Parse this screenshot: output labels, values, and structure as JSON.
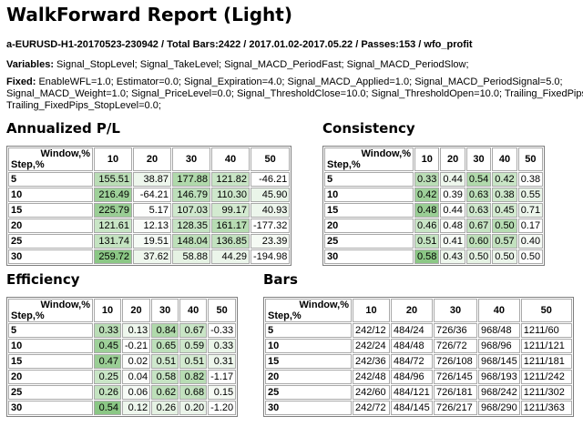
{
  "page": {
    "title": "WalkForward Report (Light)",
    "summary": "a-EURUSD-H1-20170523-230942 / Total Bars:2422 / 2017.01.02-2017.05.22 / Passes:153 / wfo_profit",
    "variables_label": "Variables:",
    "variables_text": "Signal_StopLevel; Signal_TakeLevel; Signal_MACD_PeriodFast; Signal_MACD_PeriodSlow;",
    "fixed_label": "Fixed:",
    "fixed_lines": [
      "EnableWFL=1.0; Estimator=0.0; Signal_Expiration=4.0; Signal_MACD_Applied=1.0; Signal_MACD_PeriodSignal=5.0;",
      "Signal_MACD_Weight=1.0; Signal_PriceLevel=0.0; Signal_ThresholdClose=10.0; Signal_ThresholdOpen=10.0; Trailing_FixedPips",
      "Trailing_FixedPips_StopLevel=0.0;"
    ]
  },
  "grid_header": {
    "corner_top": "Window,%",
    "corner_bottom": "Step,%",
    "columns": [
      "10",
      "20",
      "30",
      "40",
      "50"
    ],
    "rows": [
      "5",
      "10",
      "15",
      "20",
      "25",
      "30"
    ]
  },
  "tables": [
    {
      "id": "annualized_pl",
      "title": "Annualized P/L",
      "align": "right",
      "shaded": true,
      "values": [
        [
          "155.51",
          "38.87",
          "177.88",
          "121.82",
          "-46.21"
        ],
        [
          "216.49",
          "-64.21",
          "146.79",
          "110.30",
          "45.90"
        ],
        [
          "225.79",
          "5.17",
          "107.03",
          "99.17",
          "40.93"
        ],
        [
          "121.61",
          "12.13",
          "128.35",
          "161.17",
          "-177.32"
        ],
        [
          "131.74",
          "19.51",
          "148.04",
          "136.85",
          "23.39"
        ],
        [
          "259.72",
          "37.62",
          "58.88",
          "44.29",
          "-194.98"
        ]
      ]
    },
    {
      "id": "consistency",
      "title": "Consistency",
      "align": "right",
      "shaded": true,
      "values": [
        [
          "0.33",
          "0.44",
          "0.54",
          "0.42",
          "0.38"
        ],
        [
          "0.42",
          "0.39",
          "0.63",
          "0.38",
          "0.55"
        ],
        [
          "0.48",
          "0.44",
          "0.63",
          "0.45",
          "0.71"
        ],
        [
          "0.46",
          "0.48",
          "0.67",
          "0.50",
          "0.17"
        ],
        [
          "0.51",
          "0.41",
          "0.60",
          "0.57",
          "0.40"
        ],
        [
          "0.58",
          "0.43",
          "0.50",
          "0.50",
          "0.50"
        ]
      ]
    },
    {
      "id": "efficiency",
      "title": "Efficiency",
      "align": "right",
      "shaded": true,
      "values": [
        [
          "0.33",
          "0.13",
          "0.84",
          "0.67",
          "-0.33"
        ],
        [
          "0.45",
          "-0.21",
          "0.65",
          "0.59",
          "0.33"
        ],
        [
          "0.47",
          "0.02",
          "0.51",
          "0.51",
          "0.31"
        ],
        [
          "0.25",
          "0.04",
          "0.58",
          "0.82",
          "-1.17"
        ],
        [
          "0.26",
          "0.06",
          "0.62",
          "0.68",
          "0.15"
        ],
        [
          "0.54",
          "0.12",
          "0.26",
          "0.20",
          "-1.20"
        ]
      ]
    },
    {
      "id": "bars",
      "title": "Bars",
      "align": "left",
      "shaded": false,
      "values": [
        [
          "242/12",
          "484/24",
          "726/36",
          "968/48",
          "1211/60"
        ],
        [
          "242/24",
          "484/48",
          "726/72",
          "968/96",
          "1211/121"
        ],
        [
          "242/36",
          "484/72",
          "726/108",
          "968/145",
          "1211/181"
        ],
        [
          "242/48",
          "484/96",
          "726/145",
          "968/193",
          "1211/242"
        ],
        [
          "242/60",
          "484/121",
          "726/181",
          "968/242",
          "1211/302"
        ],
        [
          "242/72",
          "484/145",
          "726/217",
          "968/290",
          "1211/363"
        ]
      ]
    }
  ],
  "shading": {
    "source_table": "annualized_pl",
    "max_value": 259.72,
    "zero_color": "#ffffff",
    "max_color": "#8bc785"
  },
  "colors": {
    "text": "#000000",
    "background": "#ffffff",
    "table_outer_border": "#7f7f7f",
    "table_inner_border": "#a9a9a9"
  }
}
